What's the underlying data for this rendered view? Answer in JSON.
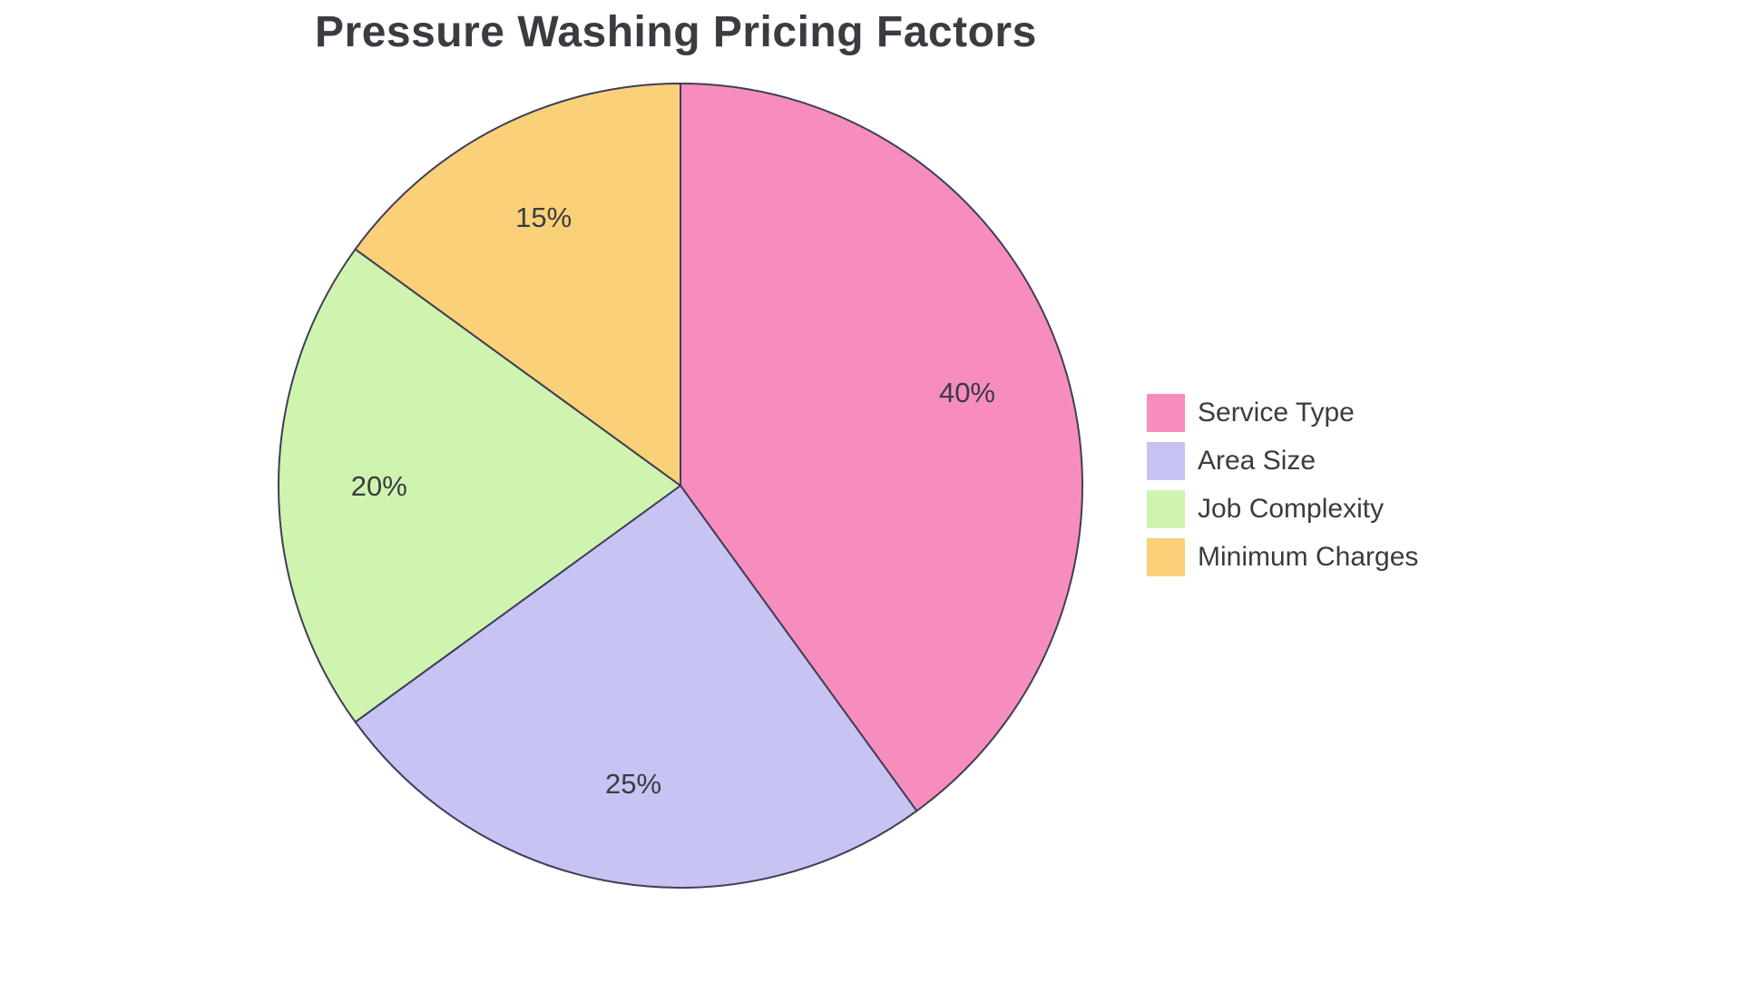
{
  "chart_data": {
    "type": "pie",
    "title": "Pressure Washing Pricing Factors",
    "categories": [
      "Service Type",
      "Area Size",
      "Job Complexity",
      "Minimum Charges"
    ],
    "values": [
      40,
      25,
      20,
      15
    ],
    "slices": [
      {
        "label": "Service Type",
        "value": 40,
        "display": "40%",
        "color": "#F78DBE"
      },
      {
        "label": "Area Size",
        "value": 25,
        "display": "25%",
        "color": "#C7C3F2"
      },
      {
        "label": "Job Complexity",
        "value": 20,
        "display": "20%",
        "color": "#CFF4AF"
      },
      {
        "label": "Minimum Charges",
        "value": 15,
        "display": "15%",
        "color": "#FAD178"
      }
    ],
    "start_angle_deg": 0,
    "direction": "clockwise",
    "stroke_color": "#3E3E55",
    "stroke_width": 2,
    "label_color": "#3B3B42",
    "legend_position": "right",
    "background_color": "#FFFFFF"
  }
}
